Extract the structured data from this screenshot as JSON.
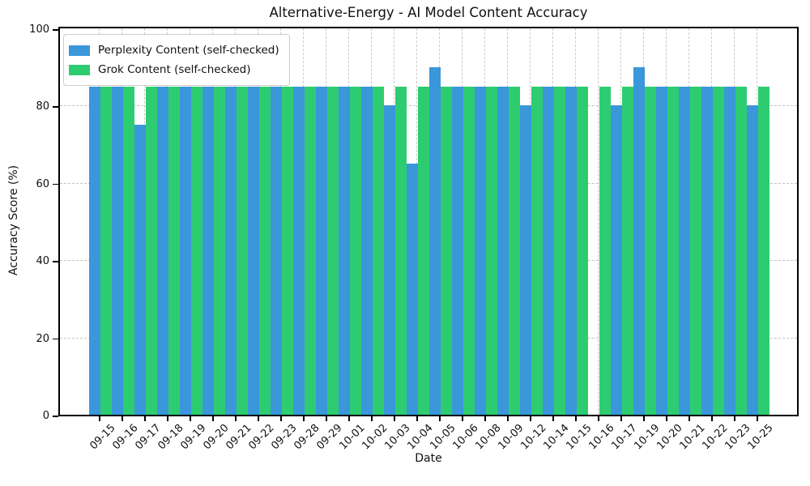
{
  "chart_data": {
    "type": "bar",
    "title": "Alternative-Energy - AI Model Content Accuracy",
    "xlabel": "Date",
    "ylabel": "Accuracy Score (%)",
    "ylim": [
      0,
      100
    ],
    "yticks": [
      0,
      20,
      40,
      60,
      80,
      100
    ],
    "grid": true,
    "legend_position": "upper-left",
    "categories": [
      "09-15",
      "09-16",
      "09-17",
      "09-18",
      "09-19",
      "09-20",
      "09-21",
      "09-22",
      "09-23",
      "09-28",
      "09-29",
      "10-01",
      "10-02",
      "10-03",
      "10-04",
      "10-05",
      "10-06",
      "10-08",
      "10-09",
      "10-12",
      "10-14",
      "10-15",
      "10-16",
      "10-17",
      "10-19",
      "10-20",
      "10-21",
      "10-22",
      "10-23",
      "10-25"
    ],
    "series": [
      {
        "name": "Perplexity Content (self-checked)",
        "color": "#3a97d9",
        "values": [
          85,
          85,
          75,
          85,
          85,
          85,
          85,
          85,
          85,
          85,
          85,
          85,
          85,
          80,
          65,
          90,
          85,
          85,
          85,
          80,
          85,
          85,
          null,
          80,
          90,
          85,
          85,
          85,
          85,
          80
        ]
      },
      {
        "name": "Grok Content (self-checked)",
        "color": "#2ecc71",
        "values": [
          85,
          85,
          85,
          85,
          85,
          85,
          85,
          85,
          85,
          85,
          85,
          85,
          85,
          85,
          85,
          85,
          85,
          85,
          85,
          85,
          85,
          85,
          85,
          85,
          85,
          85,
          85,
          85,
          85,
          85
        ]
      }
    ]
  }
}
